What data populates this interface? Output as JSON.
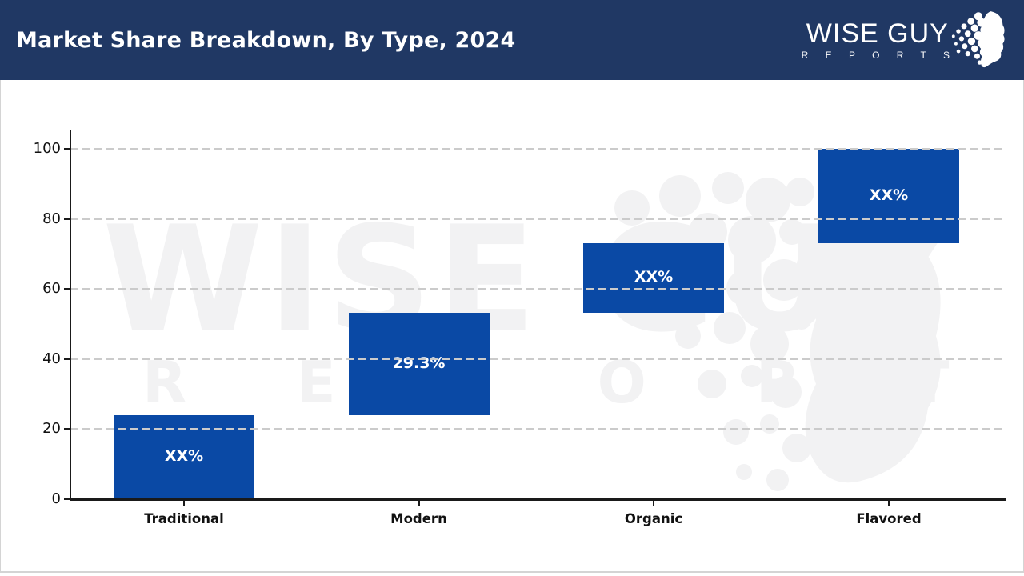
{
  "header": {
    "title": "Market Share Breakdown, By Type, 2024"
  },
  "logo": {
    "line1": "WISE GUY",
    "line2": "R E P O R T S"
  },
  "watermark": {
    "line1": "WISE GUY",
    "line2": "REPORTS"
  },
  "colors": {
    "header_bg": "#203864",
    "bar": "#0a49a5",
    "grid": "#cbcbcb",
    "axis": "#1a1a1a",
    "watermark": "#f2f2f3",
    "bar_label_text": "#ffffff"
  },
  "chart_data": {
    "type": "bar",
    "subtype": "waterfall-floating-bars",
    "title": "Market Share Breakdown, By Type, 2024",
    "categories": [
      "Traditional",
      "Modern",
      "Organic",
      "Flavored"
    ],
    "segments": [
      {
        "category": "Traditional",
        "start": 0,
        "end": 24,
        "label": "XX%"
      },
      {
        "category": "Modern",
        "start": 24,
        "end": 53.3,
        "label": "29.3%"
      },
      {
        "category": "Organic",
        "start": 53.3,
        "end": 73,
        "label": "XX%"
      },
      {
        "category": "Flavored",
        "start": 73,
        "end": 100,
        "label": "XX%"
      }
    ],
    "ylim": [
      0,
      100
    ],
    "yticks": [
      0,
      20,
      40,
      60,
      80,
      100
    ],
    "xlabel": "",
    "ylabel": "",
    "grid": "dashed-horizontal-above-bars",
    "legend": "none"
  }
}
